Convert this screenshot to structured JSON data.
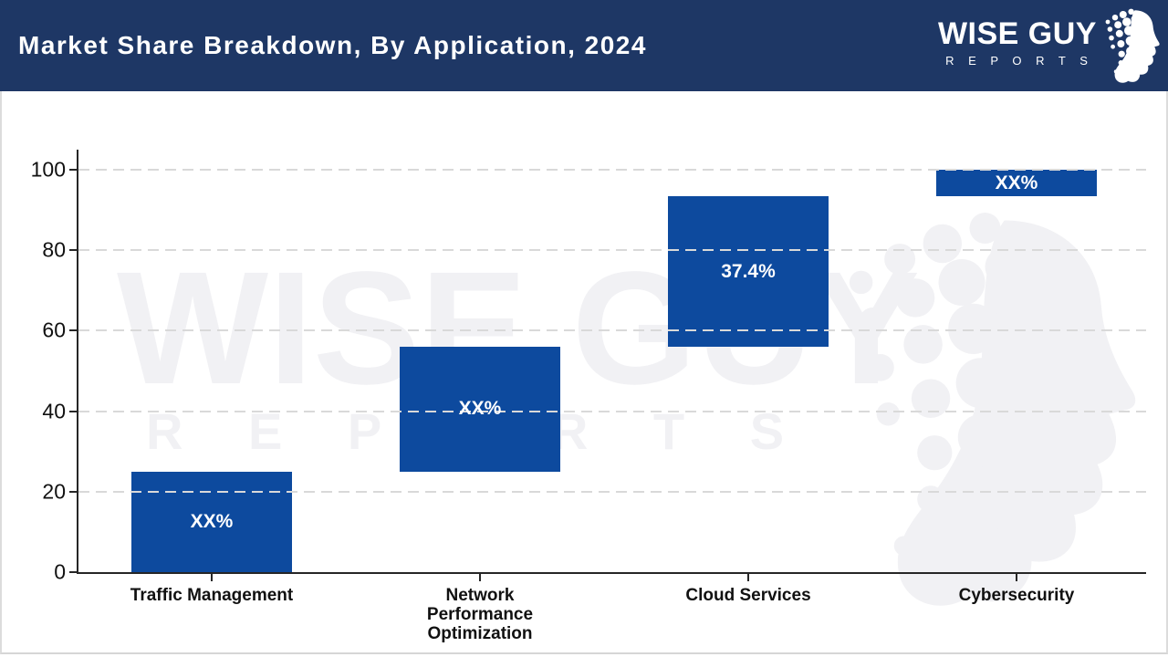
{
  "header": {
    "title": "Market Share Breakdown, By Application, 2024",
    "logo": {
      "wordmark": "WISE GUY",
      "subtext": "R E P O R T S"
    }
  },
  "watermark": {
    "line1": "WISE GUY",
    "line2": "R E P O R T S"
  },
  "colors": {
    "header_bg": "#1e3765",
    "bar": "#0d4a9e",
    "grid": "#d9d9d9",
    "axis": "#262626",
    "watermark": "#f1f1f4",
    "border": "#dcdcdc",
    "bar_label": "#ffffff"
  },
  "chart_data": {
    "type": "bar",
    "subtype": "waterfall",
    "title": "Market Share Breakdown, By Application, 2024",
    "categories": [
      "Traffic Management",
      "Network Performance Optimization",
      "Cloud Services",
      "Cybersecurity"
    ],
    "category_lines": [
      [
        "Traffic Management"
      ],
      [
        "Network",
        "Performance",
        "Optimization"
      ],
      [
        "Cloud Services"
      ],
      [
        "Cybersecurity"
      ]
    ],
    "segments": [
      {
        "category": "Traffic Management",
        "start": 0,
        "end": 25,
        "label": "XX%"
      },
      {
        "category": "Network Performance Optimization",
        "start": 25,
        "end": 56,
        "label": "XX%"
      },
      {
        "category": "Cloud Services",
        "start": 56,
        "end": 93.4,
        "label": "37.4%"
      },
      {
        "category": "Cybersecurity",
        "start": 93.4,
        "end": 100,
        "label": "XX%"
      }
    ],
    "y_ticks": [
      0,
      20,
      40,
      60,
      80,
      100
    ],
    "ylim": [
      0,
      105
    ],
    "xlabel": "",
    "ylabel": "",
    "grid": "horizontal-dashed",
    "legend": "none"
  }
}
